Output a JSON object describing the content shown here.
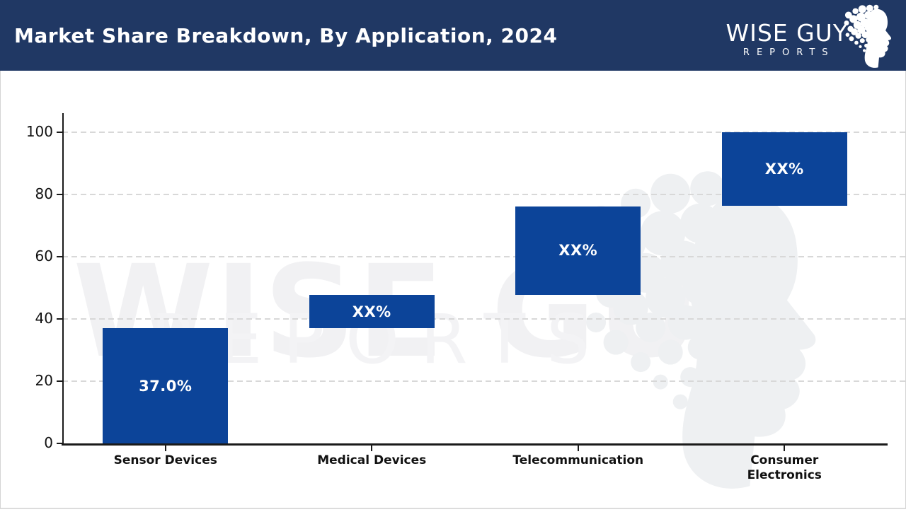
{
  "header": {
    "title": "Market Share Breakdown, By Application, 2024",
    "logo": {
      "line1": "WISE GUY",
      "line2": "REPORTS"
    }
  },
  "watermark": {
    "line1": "WISE GUY",
    "line2": "REPORTS"
  },
  "colors": {
    "header_bg": "#203864",
    "bar": "#0c4499",
    "grid": "#d8d8d8",
    "axis": "#1a1a1a",
    "bar_label": "#ffffff",
    "watermark": "#f1f1f3"
  },
  "chart_data": {
    "type": "bar",
    "subtype": "waterfall-floating-segments",
    "title": "Market Share Breakdown, By Application, 2024",
    "categories": [
      "Sensor Devices",
      "Medical Devices",
      "Telecommunication",
      "Consumer Electronics"
    ],
    "bars": [
      {
        "category": "Sensor Devices",
        "start": 0,
        "end": 37,
        "label": "37.0%"
      },
      {
        "category": "Medical Devices",
        "start": 37,
        "end": 47.7,
        "label": "XX%"
      },
      {
        "category": "Telecommunication",
        "start": 47.8,
        "end": 76.1,
        "label": "XX%"
      },
      {
        "category": "Consumer Electronics",
        "start": 76.4,
        "end": 100,
        "label": "XX%"
      }
    ],
    "xlabel": "",
    "ylabel": "",
    "yticks": [
      0,
      20,
      40,
      60,
      80,
      100
    ],
    "ylim": [
      0,
      106
    ],
    "grid": true,
    "grid_style": "dashed",
    "legend": false
  }
}
